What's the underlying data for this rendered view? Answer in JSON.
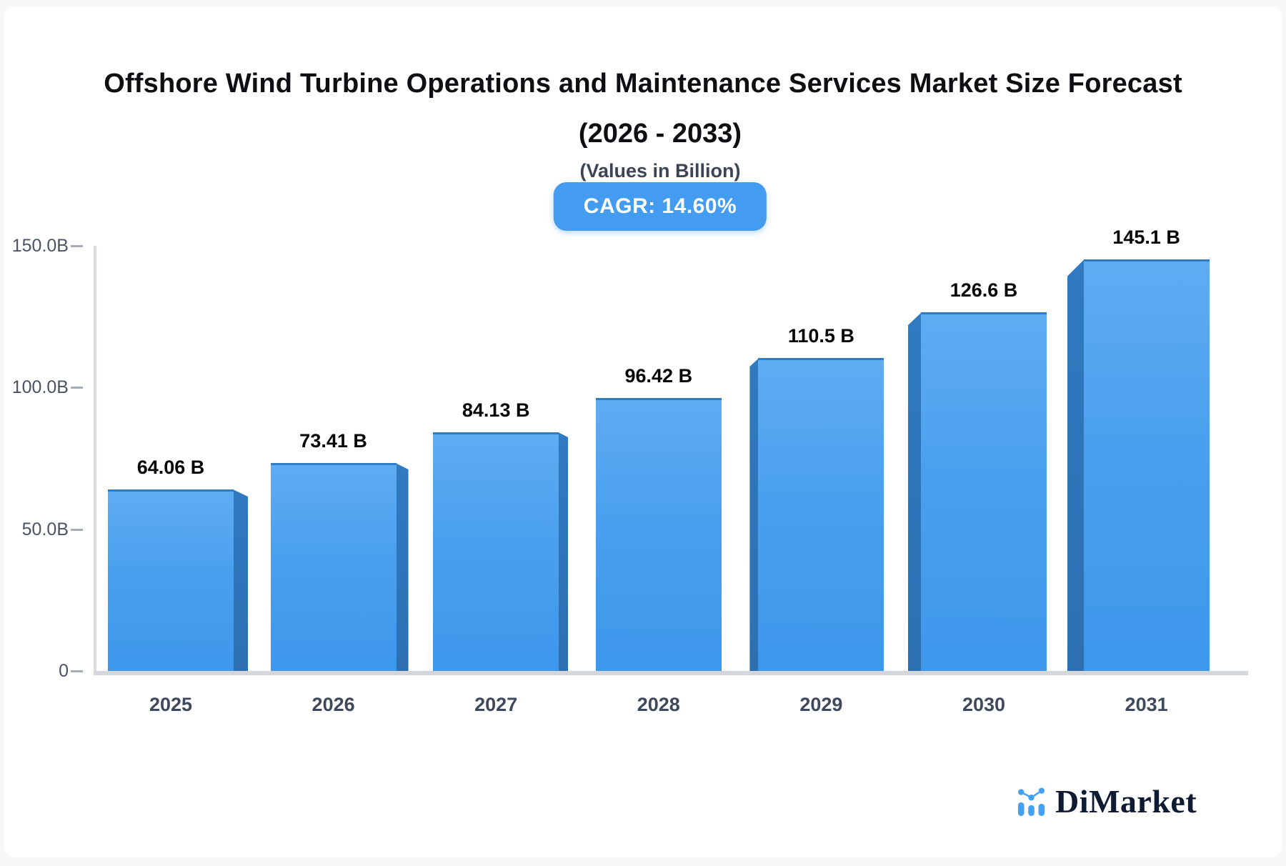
{
  "title": {
    "line1": "Offshore Wind Turbine Operations and Maintenance Services Market Size Forecast",
    "line2": "(2026 - 2033)"
  },
  "subtitle": "(Values in Billion)",
  "cagr_badge": "CAGR: 14.60%",
  "brand": {
    "name": "DiMarket",
    "icon": "bar-chart-trend-icon"
  },
  "colors": {
    "accent_blue": "#449cf0",
    "bar_face": "#4aa0ee",
    "bar_face_top": "#5facf2",
    "bar_side": "#2e76b8",
    "axis_gray": "#d3d7dc",
    "text_dark": "#0d0f12",
    "tick_text": "#4a5464",
    "brand_navy": "#0e1b33"
  },
  "chart_data": {
    "type": "bar",
    "title": "Offshore Wind Turbine Operations and Maintenance Services Market Size Forecast (2026 - 2033)",
    "subtitle": "(Values in Billion)",
    "cagr_percent": 14.6,
    "categories": [
      "2025",
      "2026",
      "2027",
      "2028",
      "2029",
      "2030",
      "2031"
    ],
    "values": [
      64.06,
      73.41,
      84.13,
      96.42,
      110.5,
      126.6,
      145.1
    ],
    "value_labels": [
      "64.06 B",
      "73.41 B",
      "84.13 B",
      "96.42 B",
      "110.5 B",
      "126.6 B",
      "145.1 B"
    ],
    "xlabel": "",
    "ylabel": "",
    "ylim": [
      0,
      150
    ],
    "yticks": [
      {
        "value": 150,
        "label": "150.0B"
      },
      {
        "value": 100,
        "label": "100.0B"
      },
      {
        "value": 50,
        "label": "50.0B"
      },
      {
        "value": 0,
        "label": "0"
      }
    ],
    "grid": false,
    "legend": false,
    "style": "3d-bars, single series, blue"
  }
}
